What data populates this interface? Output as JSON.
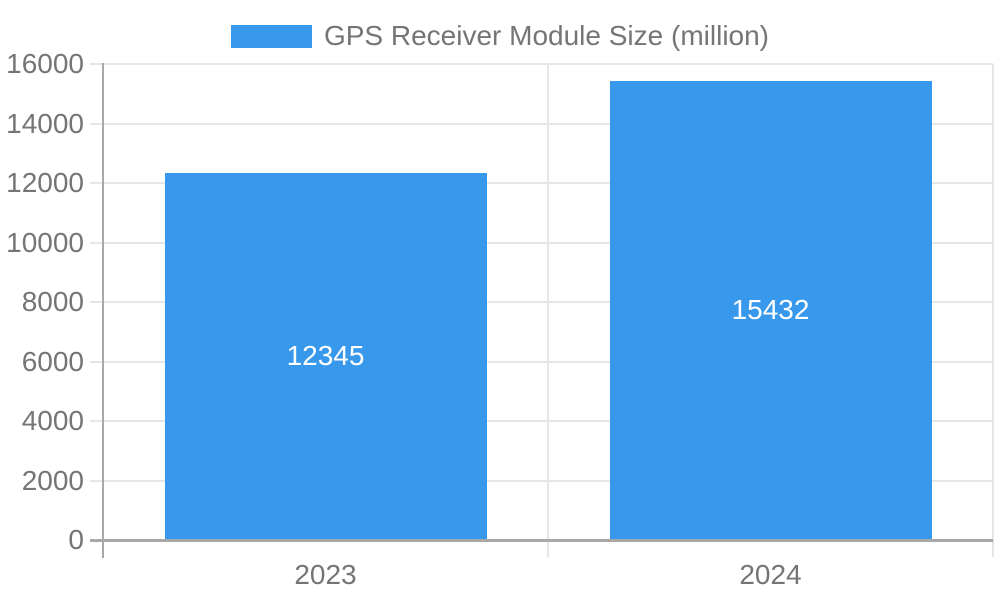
{
  "chart_data": {
    "type": "bar",
    "title": "",
    "legend": {
      "label": "GPS Receiver Module Size (million)",
      "position": "top-center"
    },
    "categories": [
      "2023",
      "2024"
    ],
    "series": [
      {
        "name": "GPS Receiver Module Size (million)",
        "values": [
          12345,
          15432
        ]
      }
    ],
    "value_labels": [
      "12345",
      "15432"
    ],
    "xlabel": "",
    "ylabel": "",
    "ylim": [
      0,
      16000
    ],
    "ytick_interval": 2000,
    "ytick_labels": [
      "0",
      "2000",
      "4000",
      "6000",
      "8000",
      "10000",
      "12000",
      "14000",
      "16000"
    ],
    "grid": true,
    "colors": {
      "bar": "#3899ec",
      "gridline": "#e6e6e6",
      "axis": "#a8a8a8",
      "axis_text": "#757575",
      "value_text": "#ffffff",
      "background": "#ffffff"
    }
  }
}
